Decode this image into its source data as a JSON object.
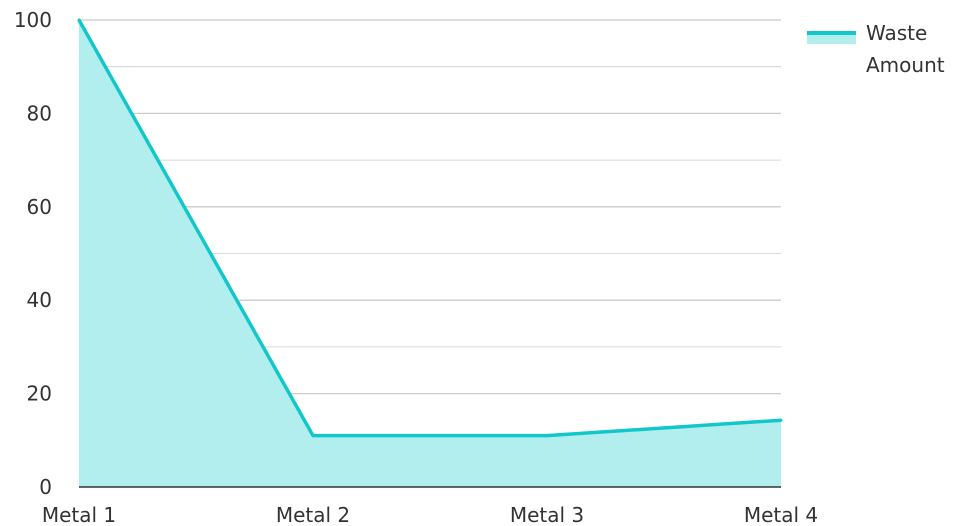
{
  "chart_data": {
    "type": "area",
    "categories": [
      "Metal 1",
      "Metal 2",
      "Metal 3",
      "Metal 4"
    ],
    "series": [
      {
        "name": "Waste Amount",
        "values": [
          100,
          11,
          11,
          14.3
        ]
      }
    ],
    "legend": {
      "position": "top-right",
      "lines": [
        "Waste",
        "Amount"
      ]
    },
    "y_ticks": [
      "0",
      "20",
      "40",
      "60",
      "80",
      "100"
    ],
    "ylim": [
      0,
      100
    ],
    "grid": true,
    "colors": {
      "line": "#12c7c9",
      "fill": "#b3eeee",
      "grid": "#cccccc",
      "axis": "#333333"
    }
  }
}
